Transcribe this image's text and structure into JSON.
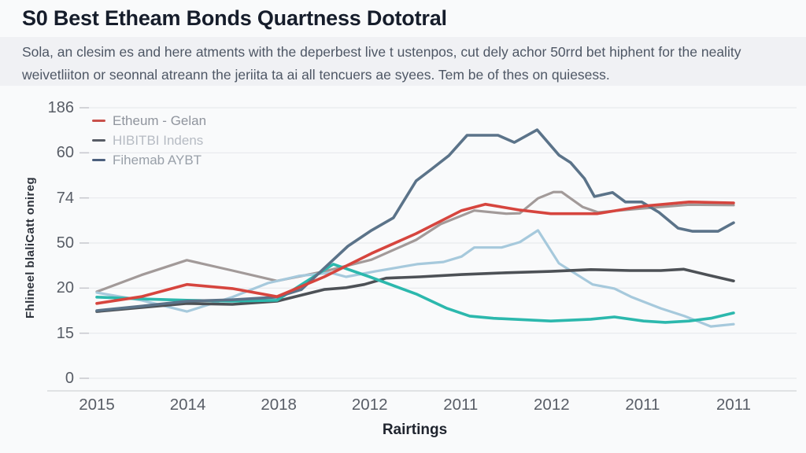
{
  "page": {
    "title": "S0 Best Etheam Bonds Quartness Dototral",
    "subtitle_line1": "Sola, an clesim es and here atments with the deperbest live t ustenpos, cut dely achor 50rrd bet hiphent for the neality",
    "subtitle_line2": "weivetliiton or seonnal atreann the jeriita ta ai all tencuers ae syees. Tem be of thes on quiesess."
  },
  "chart_data": {
    "type": "line",
    "xlabel": "Rairtings",
    "ylabel": "Fhlineel blaliCatt onireg",
    "x_ticks": [
      "2015",
      "2014",
      "2018",
      "2012",
      "2011",
      "2012",
      "2011",
      "2011"
    ],
    "y_ticks": [
      "0",
      "15",
      "20",
      "50",
      "74",
      "60",
      "186"
    ],
    "x_units": "x-tick index (0 = first tick 2015, 7 = last tick 2011)",
    "y_units": "y-gridline index (0 = bottom gridline labeled 0, 6 = top gridline labeled 186)",
    "xlim": [
      0,
      7
    ],
    "ylim": [
      0,
      6
    ],
    "grid": true,
    "legend_position": "top-left",
    "colors": {
      "grid": "#e8e9ed",
      "axis_line": "#d8d9dd",
      "tick_mark": "#c6c7cd",
      "tick_text": "#585d66"
    },
    "legend": [
      {
        "label": "Etheum - Gelan",
        "swatch": "#c8504b",
        "text_color": "#8f949d"
      },
      {
        "label": "HIBITBI Indens",
        "swatch": "#585d66",
        "text_color": "#b6bbc3"
      },
      {
        "label": "Fihemab AYBT",
        "swatch": "#4c5f7d",
        "text_color": "#99a0a9"
      }
    ],
    "series": [
      {
        "key": "hibitbi-indens",
        "name": "HIBITBI Indens",
        "color": "#a29a99",
        "width": 3.2,
        "points": [
          [
            0,
            1.92
          ],
          [
            0.49,
            2.29
          ],
          [
            0.99,
            2.62
          ],
          [
            1.49,
            2.39
          ],
          [
            1.98,
            2.16
          ],
          [
            2.5,
            2.37
          ],
          [
            3.02,
            2.63
          ],
          [
            3.51,
            3.07
          ],
          [
            3.78,
            3.42
          ],
          [
            4.15,
            3.72
          ],
          [
            4.5,
            3.65
          ],
          [
            4.65,
            3.66
          ],
          [
            4.85,
            3.99
          ],
          [
            5.02,
            4.13
          ],
          [
            5.11,
            4.13
          ],
          [
            5.34,
            3.8
          ],
          [
            5.51,
            3.68
          ],
          [
            6.01,
            3.77
          ],
          [
            6.51,
            3.85
          ],
          [
            7,
            3.84
          ]
        ]
      },
      {
        "key": "light-blue",
        "name": "",
        "color": "#a6c9dc",
        "width": 3.2,
        "points": [
          [
            0,
            1.9
          ],
          [
            0.49,
            1.73
          ],
          [
            0.99,
            1.48
          ],
          [
            1.49,
            1.8
          ],
          [
            1.88,
            2.11
          ],
          [
            2.22,
            2.27
          ],
          [
            2.57,
            2.34
          ],
          [
            2.74,
            2.25
          ],
          [
            3.06,
            2.37
          ],
          [
            3.52,
            2.53
          ],
          [
            3.81,
            2.58
          ],
          [
            4.01,
            2.7
          ],
          [
            4.15,
            2.9
          ],
          [
            4.45,
            2.9
          ],
          [
            4.65,
            3.02
          ],
          [
            4.85,
            3.28
          ],
          [
            5.08,
            2.55
          ],
          [
            5.45,
            2.08
          ],
          [
            5.69,
            1.99
          ],
          [
            5.88,
            1.8
          ],
          [
            6.2,
            1.55
          ],
          [
            6.46,
            1.38
          ],
          [
            6.75,
            1.15
          ],
          [
            7,
            1.2
          ]
        ]
      },
      {
        "key": "charcoal",
        "name": "",
        "color": "#4d5156",
        "width": 3.6,
        "points": [
          [
            0,
            1.48
          ],
          [
            0.49,
            1.57
          ],
          [
            0.99,
            1.66
          ],
          [
            1.49,
            1.64
          ],
          [
            1.98,
            1.71
          ],
          [
            2.5,
            1.97
          ],
          [
            2.74,
            2.01
          ],
          [
            2.94,
            2.08
          ],
          [
            3.18,
            2.22
          ],
          [
            3.55,
            2.25
          ],
          [
            4.01,
            2.3
          ],
          [
            4.5,
            2.34
          ],
          [
            4.99,
            2.37
          ],
          [
            5.43,
            2.41
          ],
          [
            5.86,
            2.39
          ],
          [
            6.2,
            2.39
          ],
          [
            6.45,
            2.42
          ],
          [
            6.72,
            2.29
          ],
          [
            7,
            2.16
          ]
        ]
      },
      {
        "key": "teal",
        "name": "",
        "color": "#2cb8ad",
        "width": 3.6,
        "points": [
          [
            0,
            1.8
          ],
          [
            0.49,
            1.76
          ],
          [
            0.99,
            1.73
          ],
          [
            1.49,
            1.71
          ],
          [
            1.98,
            1.73
          ],
          [
            2.6,
            2.53
          ],
          [
            3,
            2.25
          ],
          [
            3.51,
            1.87
          ],
          [
            3.85,
            1.55
          ],
          [
            4.1,
            1.38
          ],
          [
            4.36,
            1.33
          ],
          [
            4.99,
            1.27
          ],
          [
            5.43,
            1.31
          ],
          [
            5.69,
            1.36
          ],
          [
            6.01,
            1.27
          ],
          [
            6.25,
            1.24
          ],
          [
            6.51,
            1.27
          ],
          [
            6.75,
            1.33
          ],
          [
            7,
            1.45
          ]
        ]
      },
      {
        "key": "fihemab-aybt",
        "name": "Fihemab AYBT",
        "color": "#5b7389",
        "width": 3.6,
        "points": [
          [
            0,
            1.5
          ],
          [
            0.49,
            1.6
          ],
          [
            0.99,
            1.71
          ],
          [
            1.49,
            1.74
          ],
          [
            1.98,
            1.8
          ],
          [
            2.25,
            1.97
          ],
          [
            2.5,
            2.44
          ],
          [
            2.76,
            2.93
          ],
          [
            3.02,
            3.28
          ],
          [
            3.26,
            3.56
          ],
          [
            3.51,
            4.38
          ],
          [
            3.68,
            4.64
          ],
          [
            3.87,
            4.94
          ],
          [
            4.07,
            5.39
          ],
          [
            4.41,
            5.39
          ],
          [
            4.59,
            5.23
          ],
          [
            4.84,
            5.51
          ],
          [
            5.08,
            4.95
          ],
          [
            5.21,
            4.78
          ],
          [
            5.36,
            4.43
          ],
          [
            5.47,
            4.03
          ],
          [
            5.67,
            4.12
          ],
          [
            5.81,
            3.91
          ],
          [
            5.99,
            3.91
          ],
          [
            6.18,
            3.68
          ],
          [
            6.39,
            3.33
          ],
          [
            6.55,
            3.26
          ],
          [
            6.83,
            3.26
          ],
          [
            7,
            3.45
          ]
        ]
      },
      {
        "key": "etheum-gelan",
        "name": "Etheum - Gelan",
        "color": "#d6453e",
        "width": 3.6,
        "points": [
          [
            0,
            1.66
          ],
          [
            0.49,
            1.81
          ],
          [
            0.99,
            2.08
          ],
          [
            1.49,
            1.99
          ],
          [
            1.98,
            1.81
          ],
          [
            2.5,
            2.25
          ],
          [
            3.02,
            2.77
          ],
          [
            3.51,
            3.21
          ],
          [
            4.01,
            3.72
          ],
          [
            4.27,
            3.86
          ],
          [
            4.65,
            3.73
          ],
          [
            4.99,
            3.65
          ],
          [
            5.5,
            3.65
          ],
          [
            6.01,
            3.82
          ],
          [
            6.51,
            3.91
          ],
          [
            7,
            3.89
          ]
        ]
      }
    ]
  }
}
